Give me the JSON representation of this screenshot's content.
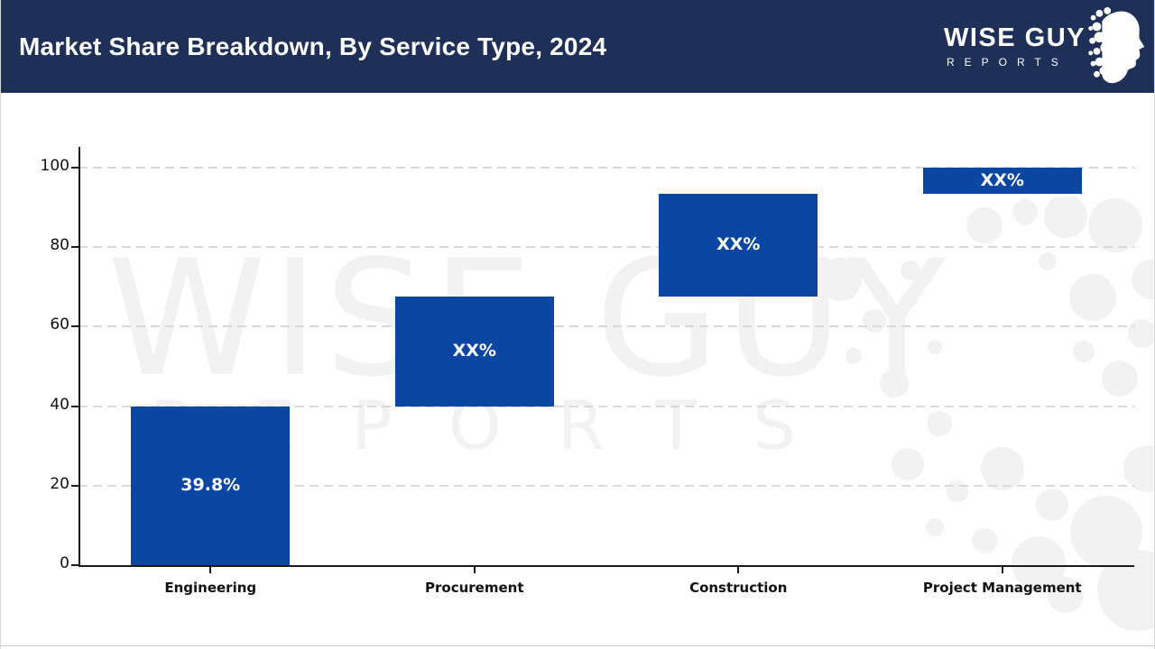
{
  "header": {
    "title": "Market Share Breakdown, By Service Type, 2024",
    "logo_line1": "WISE GUY",
    "logo_line2": "REPORTS"
  },
  "watermark": {
    "line1": "WISE GUY",
    "line2": "REPORTS"
  },
  "colors": {
    "header_bg": "#1e2f58",
    "bar": "#0b47a2",
    "bar_label": "#ffffff",
    "axis": "#1a1a1a",
    "gridline": "#d9d9d9",
    "watermark": "#f2f2f2",
    "title_text": "#ffffff"
  },
  "chart_data": {
    "type": "bar",
    "subtype": "waterfall-floating-bars",
    "title": "Market Share Breakdown, By Service Type, 2024",
    "xlabel": "",
    "ylabel": "",
    "categories": [
      "Engineering",
      "Procurement",
      "Construction",
      "Project Management"
    ],
    "segments": [
      {
        "category": "Engineering",
        "start": 0,
        "end": 39.8,
        "label": "39.8%"
      },
      {
        "category": "Procurement",
        "start": 40,
        "end": 67.6,
        "label": "XX%"
      },
      {
        "category": "Construction",
        "start": 67.6,
        "end": 93.4,
        "label": "XX%"
      },
      {
        "category": "Project Management",
        "start": 93.4,
        "end": 100,
        "label": "XX%"
      }
    ],
    "y_ticks": [
      0,
      20,
      40,
      60,
      80,
      100
    ],
    "ylim": [
      0,
      105
    ],
    "grid": "horizontal-dashed",
    "legend": "none",
    "bar_color": "#0b47a2",
    "value_label_color": "#ffffff",
    "notes": "Only Engineering value is disclosed (39.8%); other segment values are masked as XX% in the source image."
  }
}
